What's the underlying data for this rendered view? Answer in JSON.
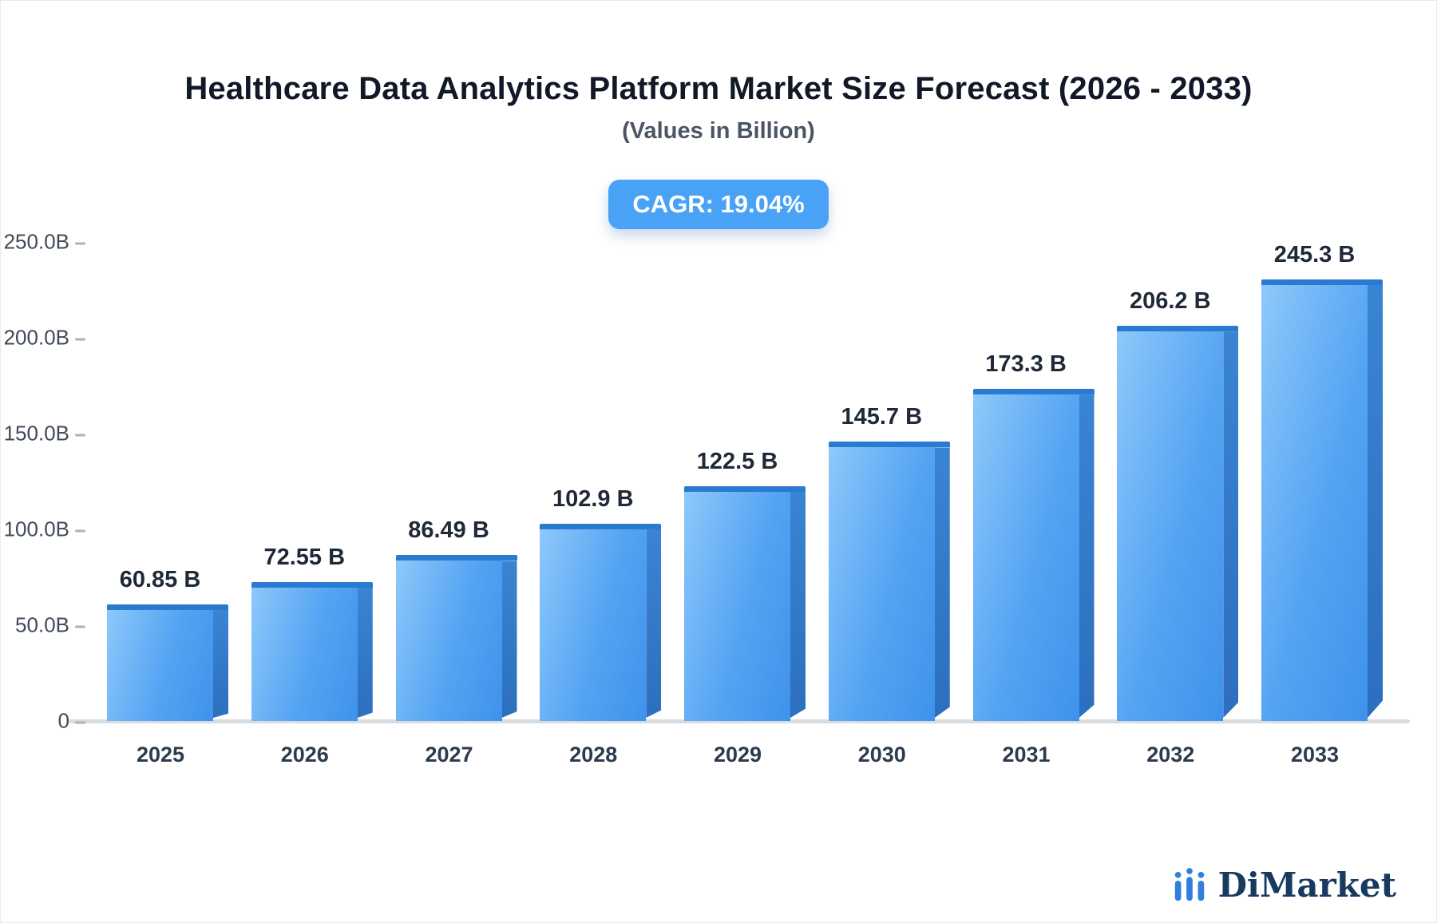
{
  "header": {
    "title": "Healthcare Data Analytics Platform Market Size Forecast (2026 - 2033)",
    "subtitle": "(Values in Billion)",
    "cagr_label": "CAGR: 19.04%"
  },
  "chart_data": {
    "type": "bar",
    "title": "Healthcare Data Analytics Platform Market Size Forecast (2026 - 2033)",
    "subtitle": "(Values in Billion)",
    "cagr": "CAGR: 19.04%",
    "categories": [
      "2025",
      "2026",
      "2027",
      "2028",
      "2029",
      "2030",
      "2031",
      "2032",
      "2033"
    ],
    "values": [
      60.85,
      72.55,
      86.49,
      102.9,
      122.5,
      145.7,
      173.3,
      206.2,
      245.3
    ],
    "value_labels": [
      "60.85 B",
      "72.55 B",
      "86.49 B",
      "102.9 B",
      "122.5 B",
      "145.7 B",
      "173.3 B",
      "206.2 B",
      "245.3 B"
    ],
    "xlabel": "",
    "ylabel": "",
    "ylim": [
      0,
      250
    ],
    "y_ticks": [
      "0",
      "50.0B",
      "100.0B",
      "150.0B",
      "200.0B",
      "250.0B"
    ],
    "grid": false,
    "legend": "none",
    "colors": {
      "bar_face_light": "#8ec9fa",
      "bar_face": "#4498f0",
      "bar_side": "#2c6fbe",
      "bar_top": "#2a7ad2",
      "accent_badge": "#4aa2f6",
      "title_text": "#111827",
      "axis_text": "#3f4a57",
      "baseline": "#d8dcdf",
      "logo_navy": "#173a5e",
      "logo_blue": "#2f7fe0"
    }
  },
  "branding": {
    "logo_text": "DiMarket",
    "logo_icon": "bar-chart-icon"
  }
}
